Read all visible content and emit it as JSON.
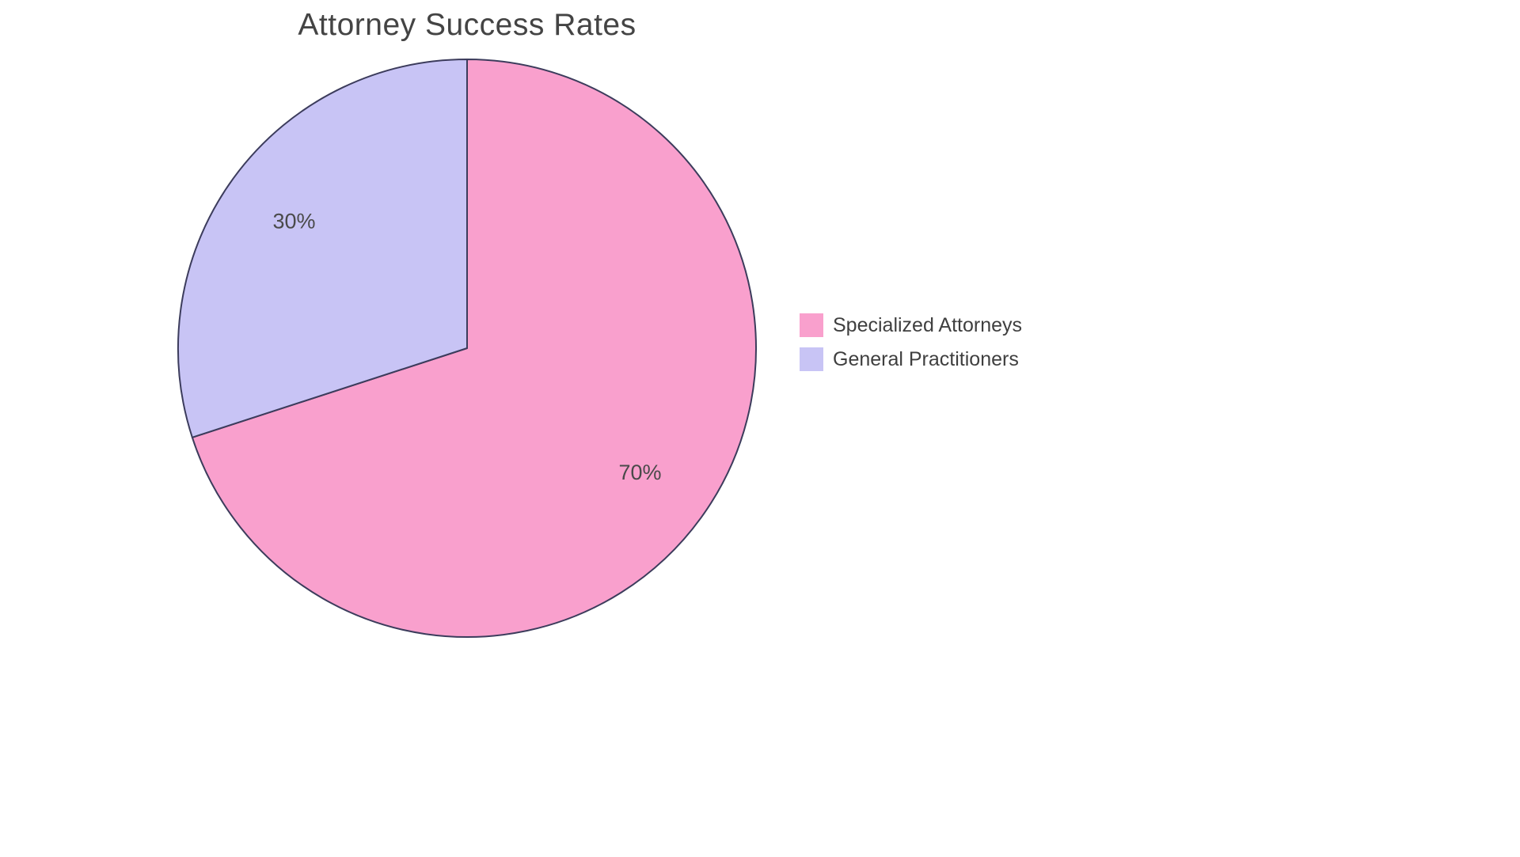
{
  "chart_data": {
    "type": "pie",
    "title": "Attorney Success Rates",
    "labels": [
      "Specialized Attorneys",
      "General Practitioners"
    ],
    "values": [
      70,
      30
    ],
    "percent_labels": [
      "70%",
      "30%"
    ],
    "colors": [
      "#F9A0CD",
      "#C8C4F5"
    ],
    "stroke_color": "#3C3C5C",
    "text_color": "#4A4A4A",
    "legend_position": "right",
    "start_angle_deg": 0,
    "direction": "clockwise"
  }
}
